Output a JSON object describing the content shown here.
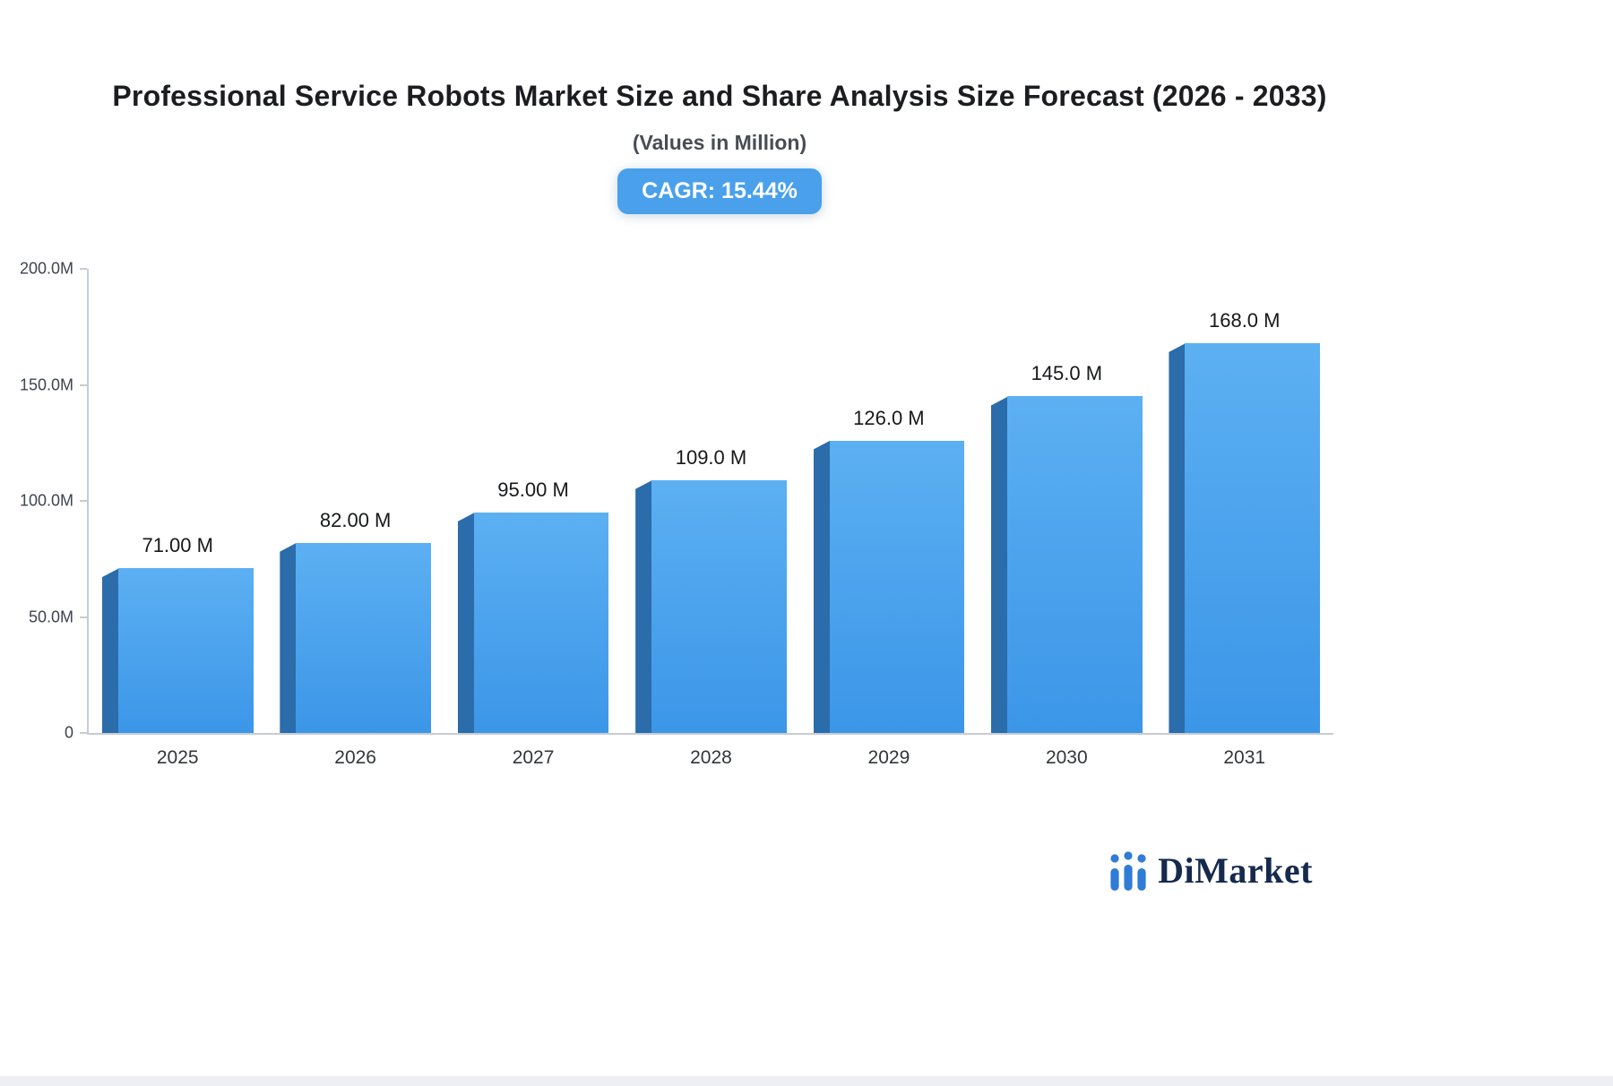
{
  "page": {
    "title": "Professional Service Robots Market Size and Share Analysis Size Forecast (2026 - 2033)",
    "subtitle": "(Values in Million)",
    "cagr_label": "CAGR: 15.44%"
  },
  "brand": {
    "name": "DiMarket",
    "icon": "bar-chart-logo-icon",
    "accent": "#2e7cd6",
    "text_color": "#152a4d"
  },
  "chart_data": {
    "type": "bar",
    "title": "Professional Service Robots Market Size and Share Analysis Size Forecast (2026 - 2033)",
    "subtitle": "(Values in Million)",
    "cagr": "15.44%",
    "categories": [
      "2025",
      "2026",
      "2027",
      "2028",
      "2029",
      "2030",
      "2031"
    ],
    "values": [
      71,
      82,
      95,
      109,
      126,
      145,
      168
    ],
    "value_labels": [
      "71.00 M",
      "82.00 M",
      "95.00 M",
      "109.0 M",
      "126.0 M",
      "145.0 M",
      "168.0 M"
    ],
    "xlabel": "",
    "ylabel": "",
    "ylim": [
      0,
      200
    ],
    "ytick_values": [
      200,
      150,
      100,
      50,
      0
    ],
    "ytick_labels": [
      "200.0M",
      "150.0M",
      "100.0M",
      "50.0M",
      "0"
    ],
    "grid": false,
    "legend": false,
    "bar_face_color_top": "#5cb0f2",
    "bar_face_color_bottom": "#3c96e8",
    "bar_side_color": "#2b6cab",
    "badge_color": "#4aa0ea",
    "axis_color": "#c7ccd3"
  }
}
